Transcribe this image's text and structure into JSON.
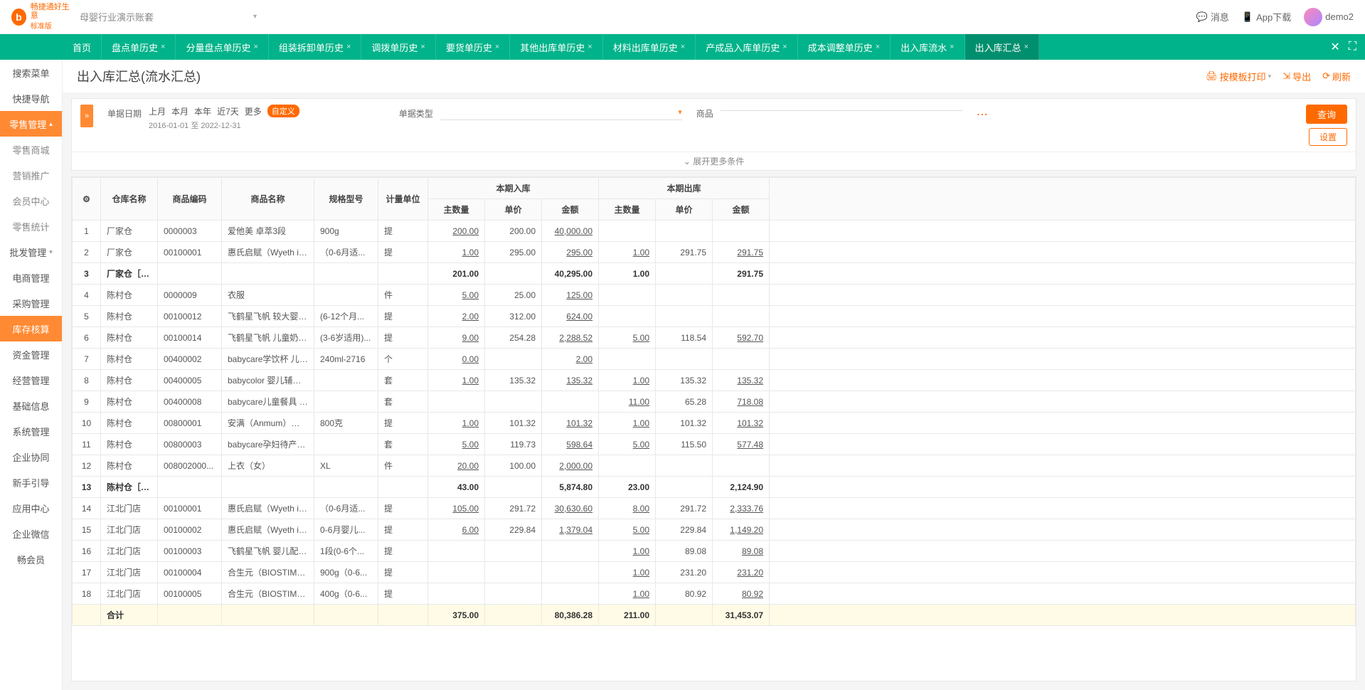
{
  "topbar": {
    "brand_line1": "畅捷通好生意",
    "brand_line2": "标准版",
    "account": "母婴行业演示账套",
    "msg": "消息",
    "appdl": "App下载",
    "user": "demo2"
  },
  "tabs": {
    "items": [
      {
        "label": "首页",
        "closable": false
      },
      {
        "label": "盘点单历史",
        "closable": true
      },
      {
        "label": "分量盘点单历史",
        "closable": true
      },
      {
        "label": "组装拆卸单历史",
        "closable": true
      },
      {
        "label": "调拨单历史",
        "closable": true
      },
      {
        "label": "要货单历史",
        "closable": true
      },
      {
        "label": "其他出库单历史",
        "closable": true
      },
      {
        "label": "材料出库单历史",
        "closable": true
      },
      {
        "label": "产成品入库单历史",
        "closable": true
      },
      {
        "label": "成本调整单历史",
        "closable": true
      },
      {
        "label": "出入库流水",
        "closable": true
      },
      {
        "label": "出入库汇总",
        "closable": true,
        "active": true
      }
    ]
  },
  "sidebar": {
    "items": [
      {
        "label": "搜索菜单",
        "type": "plain"
      },
      {
        "label": "快捷导航",
        "type": "plain"
      },
      {
        "label": "零售管理",
        "type": "orange-arrow"
      },
      {
        "label": "零售商城",
        "type": "sub"
      },
      {
        "label": "营销推广",
        "type": "sub"
      },
      {
        "label": "会员中心",
        "type": "sub"
      },
      {
        "label": "零售统计",
        "type": "sub"
      },
      {
        "label": "批发管理",
        "type": "expand"
      },
      {
        "label": "电商管理",
        "type": "plain"
      },
      {
        "label": "采购管理",
        "type": "plain"
      },
      {
        "label": "库存核算",
        "type": "active"
      },
      {
        "label": "资金管理",
        "type": "plain"
      },
      {
        "label": "经营管理",
        "type": "plain"
      },
      {
        "label": "基础信息",
        "type": "plain"
      },
      {
        "label": "系统管理",
        "type": "plain"
      },
      {
        "label": "企业协同",
        "type": "plain"
      },
      {
        "label": "新手引导",
        "type": "plain"
      },
      {
        "label": "应用中心",
        "type": "plain"
      },
      {
        "label": "企业微信",
        "type": "plain"
      },
      {
        "label": "畅会员",
        "type": "plain"
      }
    ]
  },
  "page": {
    "title": "出入库汇总(流水汇总)",
    "print": "按模板打印",
    "export": "导出",
    "refresh": "刷新"
  },
  "filters": {
    "label_date": "单据日期",
    "presets": [
      "上月",
      "本月",
      "本年",
      "近7天",
      "更多"
    ],
    "custom": "自定义",
    "range": "2016-01-01 至 2022-12-31",
    "label_type": "单据类型",
    "label_prod": "商品",
    "btn_query": "查询",
    "btn_setting": "设置",
    "expand": "展开更多条件"
  },
  "table": {
    "group_in": "本期入库",
    "group_out": "本期出库",
    "headers": {
      "wh": "仓库名称",
      "code": "商品编码",
      "name": "商品名称",
      "spec": "规格型号",
      "unit": "计量单位",
      "qty": "主数量",
      "price": "单价",
      "amt": "金额"
    },
    "rows": [
      {
        "n": "1",
        "wh": "厂家仓",
        "code": "0000003",
        "name": "爱他美 卓萃3段",
        "spec": "900g",
        "unit": "提",
        "iq": "200.00",
        "iqu": true,
        "ip": "200.00",
        "ia": "40,000.00",
        "iau": true
      },
      {
        "n": "2",
        "wh": "厂家仓",
        "code": "00100001",
        "name": "惠氏启赋（Wyeth illu...",
        "spec": "（0-6月适...",
        "unit": "提",
        "iq": "1.00",
        "iqu": true,
        "ip": "295.00",
        "ia": "295.00",
        "iau": true,
        "oq": "1.00",
        "oqu": true,
        "op": "291.75",
        "oa": "291.75",
        "oau": true
      },
      {
        "n": "3",
        "wh": "厂家仓［小...",
        "subtotal": true,
        "iq": "201.00",
        "ia": "40,295.00",
        "oq": "1.00",
        "oa": "291.75"
      },
      {
        "n": "4",
        "wh": "陈村仓",
        "code": "0000009",
        "name": "衣服",
        "unit": "件",
        "iq": "5.00",
        "iqu": true,
        "ip": "25.00",
        "ia": "125.00",
        "iau": true
      },
      {
        "n": "5",
        "wh": "陈村仓",
        "code": "00100012",
        "name": "飞鹤星飞帆 较大婴儿配...",
        "spec": "(6-12个月...",
        "unit": "提",
        "iq": "2.00",
        "iqu": true,
        "ip": "312.00",
        "ia": "624.00",
        "iau": true
      },
      {
        "n": "6",
        "wh": "陈村仓",
        "code": "00100014",
        "name": "飞鹤星飞帆 儿童奶粉 4...",
        "spec": "(3-6岁适用)...",
        "unit": "提",
        "iq": "9.00",
        "iqu": true,
        "ip": "254.28",
        "ia": "2,288.52",
        "iau": true,
        "oq": "5.00",
        "oqu": true,
        "op": "118.54",
        "oa": "592.70",
        "oau": true
      },
      {
        "n": "7",
        "wh": "陈村仓",
        "code": "00400002",
        "name": "babycare学饮杯 儿童...",
        "spec": "240ml-2716",
        "unit": "个",
        "iq": "0.00",
        "iqu": true,
        "ia": "2.00",
        "iau": true
      },
      {
        "n": "8",
        "wh": "陈村仓",
        "code": "00400005",
        "name": "babycolor 婴儿辅食机 ...",
        "unit": "套",
        "iq": "1.00",
        "iqu": true,
        "ip": "135.32",
        "ia": "135.32",
        "iau": true,
        "oq": "1.00",
        "oqu": true,
        "op": "135.32",
        "oa": "135.32",
        "oau": true
      },
      {
        "n": "9",
        "wh": "陈村仓",
        "code": "00400008",
        "name": "babycare儿童餐具 婴...",
        "unit": "套",
        "oq": "11.00",
        "oqu": true,
        "op": "65.28",
        "oa": "718.08",
        "oau": true
      },
      {
        "n": "10",
        "wh": "陈村仓",
        "code": "00800001",
        "name": "安满（Anmum）智孕...",
        "spec": "800克",
        "unit": "提",
        "iq": "1.00",
        "iqu": true,
        "ip": "101.32",
        "ia": "101.32",
        "iau": true,
        "oq": "1.00",
        "oqu": true,
        "op": "101.32",
        "oa": "101.32",
        "oau": true
      },
      {
        "n": "11",
        "wh": "陈村仓",
        "code": "00800003",
        "name": "babycare孕妇待产包 ...",
        "unit": "套",
        "iq": "5.00",
        "iqu": true,
        "ip": "119.73",
        "ia": "598.64",
        "iau": true,
        "oq": "5.00",
        "oqu": true,
        "op": "115.50",
        "oa": "577.48",
        "oau": true
      },
      {
        "n": "12",
        "wh": "陈村仓",
        "code": "008002000...",
        "name": "上衣（女）",
        "spec": "XL",
        "unit": "件",
        "iq": "20.00",
        "iqu": true,
        "ip": "100.00",
        "ia": "2,000.00",
        "iau": true
      },
      {
        "n": "13",
        "wh": "陈村仓［小...",
        "subtotal": true,
        "iq": "43.00",
        "ia": "5,874.80",
        "oq": "23.00",
        "oa": "2,124.90"
      },
      {
        "n": "14",
        "wh": "江北门店",
        "code": "00100001",
        "name": "惠氏启赋（Wyeth illu...",
        "spec": "（0-6月适...",
        "unit": "提",
        "iq": "105.00",
        "iqu": true,
        "ip": "291.72",
        "ia": "30,630.60",
        "iau": true,
        "oq": "8.00",
        "oqu": true,
        "op": "291.72",
        "oa": "2,333.76",
        "oau": true
      },
      {
        "n": "15",
        "wh": "江北门店",
        "code": "00100002",
        "name": "惠氏启赋（Wyeth illu...",
        "spec": "0-6月婴儿...",
        "unit": "提",
        "iq": "6.00",
        "iqu": true,
        "ip": "229.84",
        "ia": "1,379.04",
        "iau": true,
        "oq": "5.00",
        "oqu": true,
        "op": "229.84",
        "oa": "1,149.20",
        "oau": true
      },
      {
        "n": "16",
        "wh": "江北门店",
        "code": "00100003",
        "name": "飞鹤星飞帆 婴儿配方奶...",
        "spec": "1段(0-6个...",
        "unit": "提",
        "oq": "1.00",
        "oqu": true,
        "op": "89.08",
        "oa": "89.08",
        "oau": true
      },
      {
        "n": "17",
        "wh": "江北门店",
        "code": "00100004",
        "name": "合生元（BIOSTIME）...",
        "spec": "900g（0-6...",
        "unit": "提",
        "oq": "1.00",
        "oqu": true,
        "op": "231.20",
        "oa": "231.20",
        "oau": true
      },
      {
        "n": "18",
        "wh": "江北门店",
        "code": "00100005",
        "name": "合生元（BIOSTIME）...",
        "spec": "400g（0-6...",
        "unit": "提",
        "oq": "1.00",
        "oqu": true,
        "op": "80.92",
        "oa": "80.92",
        "oau": true
      }
    ],
    "total": {
      "label": "合计",
      "iq": "375.00",
      "ia": "80,386.28",
      "oq": "211.00",
      "oa": "31,453.07"
    }
  },
  "colors": {
    "primary_green": "#00b38a",
    "accent_orange": "#ff6a00"
  }
}
